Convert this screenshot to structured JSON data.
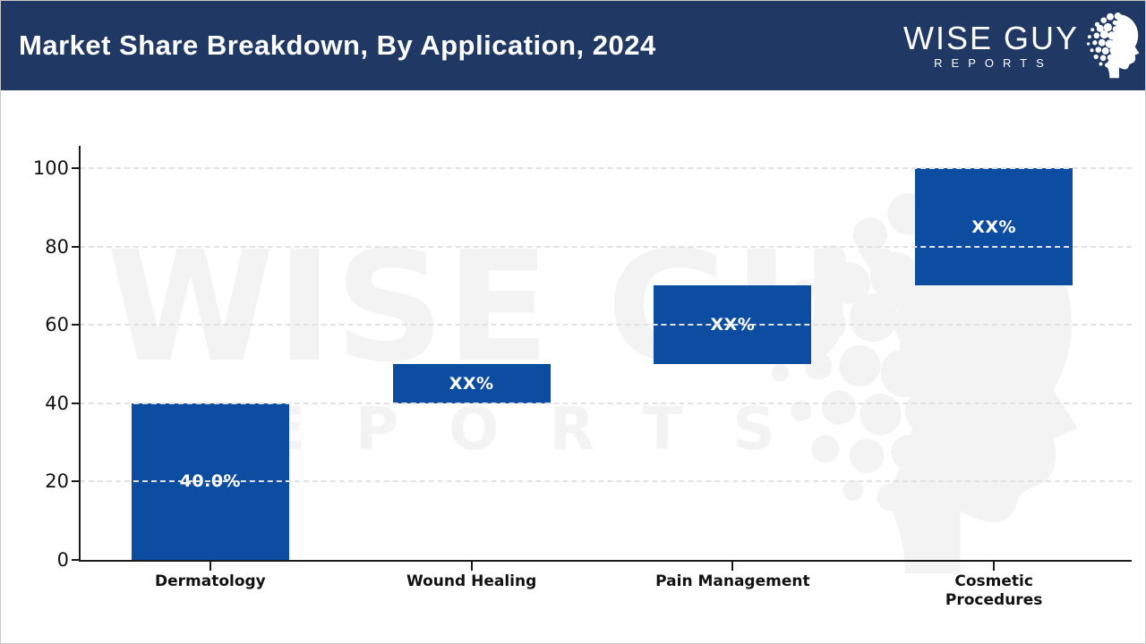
{
  "header": {
    "title": "Market Share Breakdown, By Application, 2024",
    "background_color": "#1f3864",
    "logo": {
      "line1": "WISE GUY",
      "line2": "REPORTS"
    }
  },
  "watermark": {
    "line1": "WISE GUY",
    "line2": "REPORTS",
    "color": "#f3f3f3"
  },
  "chart_data": {
    "type": "bar",
    "subtype": "waterfall",
    "title": "Market Share Breakdown, By Application, 2024",
    "categories": [
      "Dermatology",
      "Wound Healing",
      "Pain Management",
      "Cosmetic Procedures"
    ],
    "tick_labels": [
      "Dermatology",
      "Wound Healing",
      "Pain Management",
      "Cosmetic\nProcedures"
    ],
    "segments": [
      {
        "category": "Dermatology",
        "start": 0,
        "end": 40,
        "label": "40.0%"
      },
      {
        "category": "Wound Healing",
        "start": 40,
        "end": 50,
        "label": "XX%"
      },
      {
        "category": "Pain Management",
        "start": 50,
        "end": 70,
        "label": "XX%"
      },
      {
        "category": "Cosmetic Procedures",
        "start": 70,
        "end": 100,
        "label": "XX%"
      }
    ],
    "ylim": [
      0,
      100
    ],
    "yticks": [
      0,
      20,
      40,
      60,
      80,
      100
    ],
    "xlabel": "",
    "ylabel": "",
    "grid": "horizontal-dashed",
    "legend": "none",
    "bar_color": "#0d4da1",
    "bar_label_color": "#ffffff",
    "gridline_color": "#e2e2e2",
    "axis_color": "#1a1a1a"
  }
}
